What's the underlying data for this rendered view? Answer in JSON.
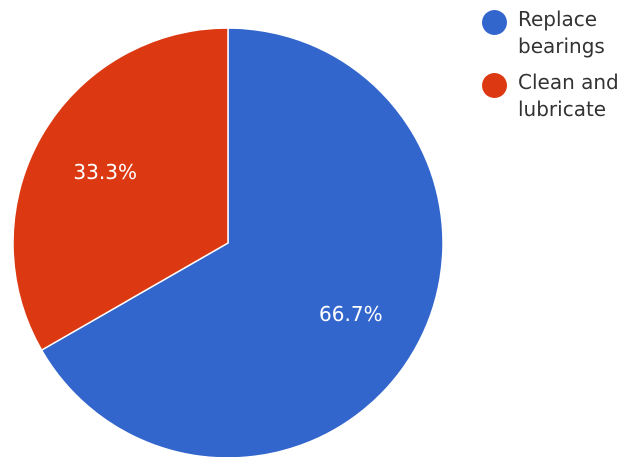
{
  "chart_data": {
    "type": "pie",
    "slices": [
      {
        "label": "Replace bearings",
        "label_lines": [
          "Replace",
          "bearings"
        ],
        "value": 66.7,
        "display": "66.7%",
        "color": "#3366cc"
      },
      {
        "label": "Clean and lubricate",
        "label_lines": [
          "Clean and",
          "lubricate"
        ],
        "value": 33.3,
        "display": "33.3%",
        "color": "#dc3912"
      }
    ],
    "start_angle_deg": 0,
    "direction": "clockwise",
    "legend_position": "right"
  }
}
